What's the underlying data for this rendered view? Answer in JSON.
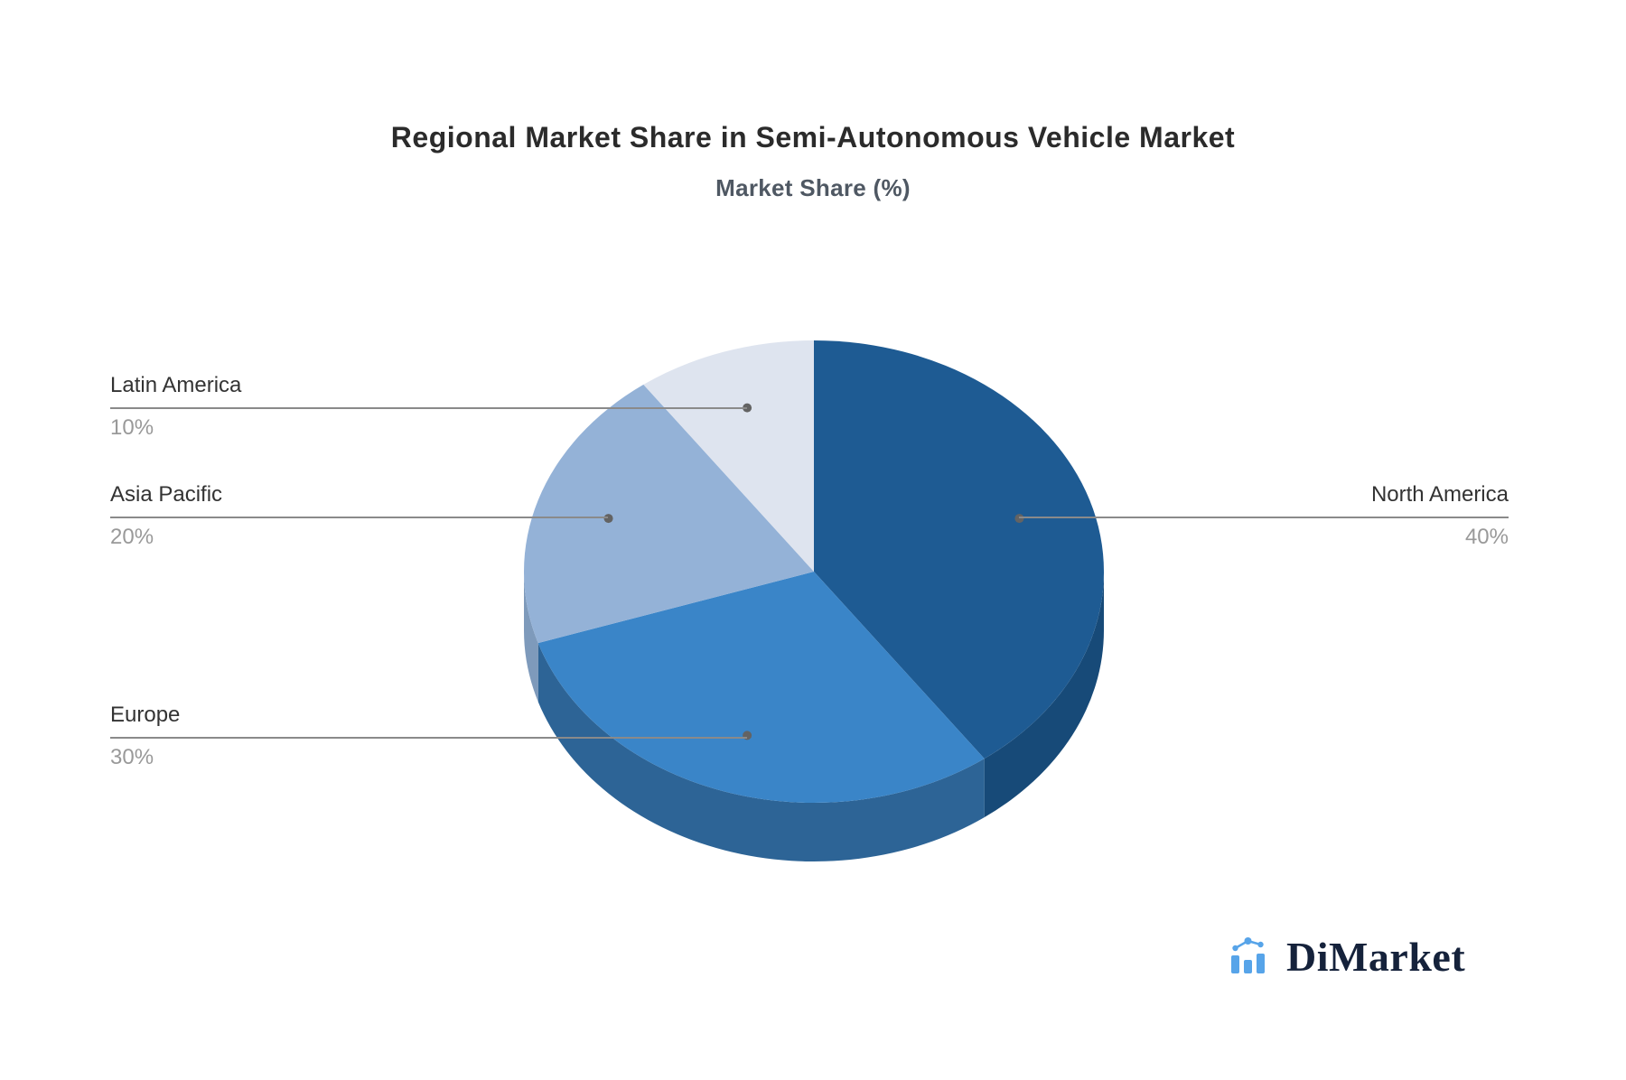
{
  "title": "Regional Market Share in Semi-Autonomous Vehicle Market",
  "subtitle": "Market Share (%)",
  "chart_data": {
    "type": "pie",
    "style": "3d-pie",
    "title": "Regional Market Share in Semi-Autonomous Vehicle Market",
    "subtitle": "Market Share (%)",
    "unit": "%",
    "direction": "clockwise",
    "start_angle_deg": 0,
    "legend_position": "callout-labels",
    "slices": [
      {
        "label": "North America",
        "value": 40,
        "percent_label": "40%",
        "color": "#1E5B93",
        "side_color": "#174A78",
        "callout_side": "right"
      },
      {
        "label": "Europe",
        "value": 30,
        "percent_label": "30%",
        "color": "#3A85C8",
        "side_color": "#2D6496",
        "callout_side": "left"
      },
      {
        "label": "Asia Pacific",
        "value": 20,
        "percent_label": "20%",
        "color": "#94B2D7",
        "side_color": "#7E9ABB",
        "callout_side": "left"
      },
      {
        "label": "Latin America",
        "value": 10,
        "percent_label": "10%",
        "color": "#DEE4EF",
        "side_color": "#C2CBD9",
        "callout_side": "left"
      }
    ]
  },
  "callout_style": {
    "line_color": "#8a8a8a",
    "dot_color": "#636363",
    "name_color": "#333333",
    "percent_color": "#999999"
  },
  "logo": {
    "text": "DiMarket",
    "icon": "mini-bar-line-chart-icon",
    "icon_color": "#57A4E9",
    "text_color": "#15223b"
  }
}
